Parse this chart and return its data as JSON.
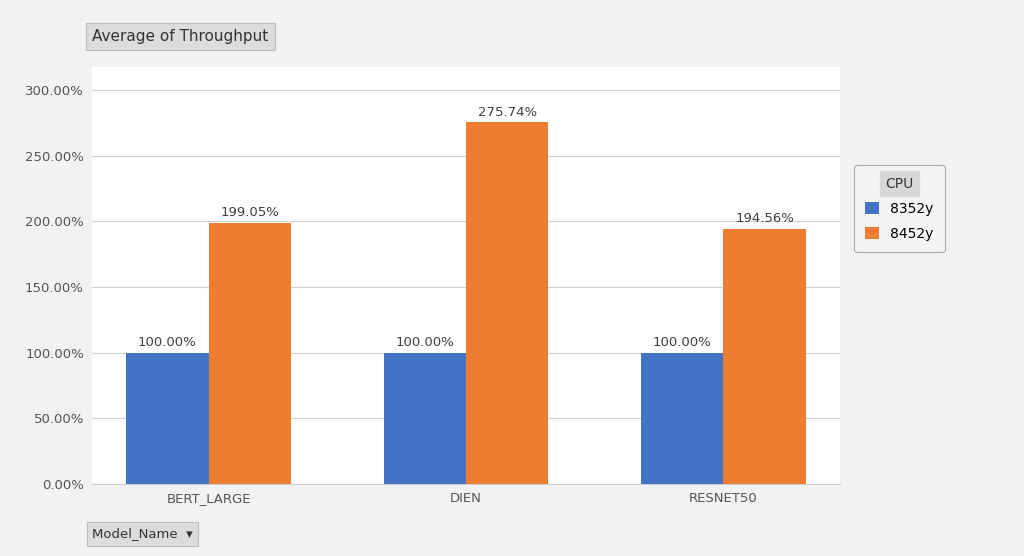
{
  "categories": [
    "BERT_LARGE",
    "DIEN",
    "RESNET50"
  ],
  "series": [
    {
      "name": "8352y",
      "values": [
        100.0,
        100.0,
        100.0
      ],
      "color": "#4472C4"
    },
    {
      "name": "8452y",
      "values": [
        199.05,
        275.74,
        194.56
      ],
      "color": "#ED7D31"
    }
  ],
  "labels_8352y": [
    "100.00%",
    "100.00%",
    "100.00%"
  ],
  "labels_8452y": [
    "199.05%",
    "275.74%",
    "194.56%"
  ],
  "title": "Average of Throughput",
  "yticks": [
    0,
    50,
    100,
    150,
    200,
    250,
    300
  ],
  "ytick_labels": [
    "0.00%",
    "50.00%",
    "100.00%",
    "150.00%",
    "200.00%",
    "250.00%",
    "300.00%"
  ],
  "ylim": [
    0,
    318
  ],
  "legend_title": "CPU",
  "fig_bg_color": "#F2F2F2",
  "plot_bg_color": "#FFFFFF",
  "grid_color": "#D0D0D0",
  "bar_width": 0.32,
  "title_fontsize": 11,
  "tick_fontsize": 9.5,
  "label_fontsize": 9.5,
  "legend_fontsize": 10
}
